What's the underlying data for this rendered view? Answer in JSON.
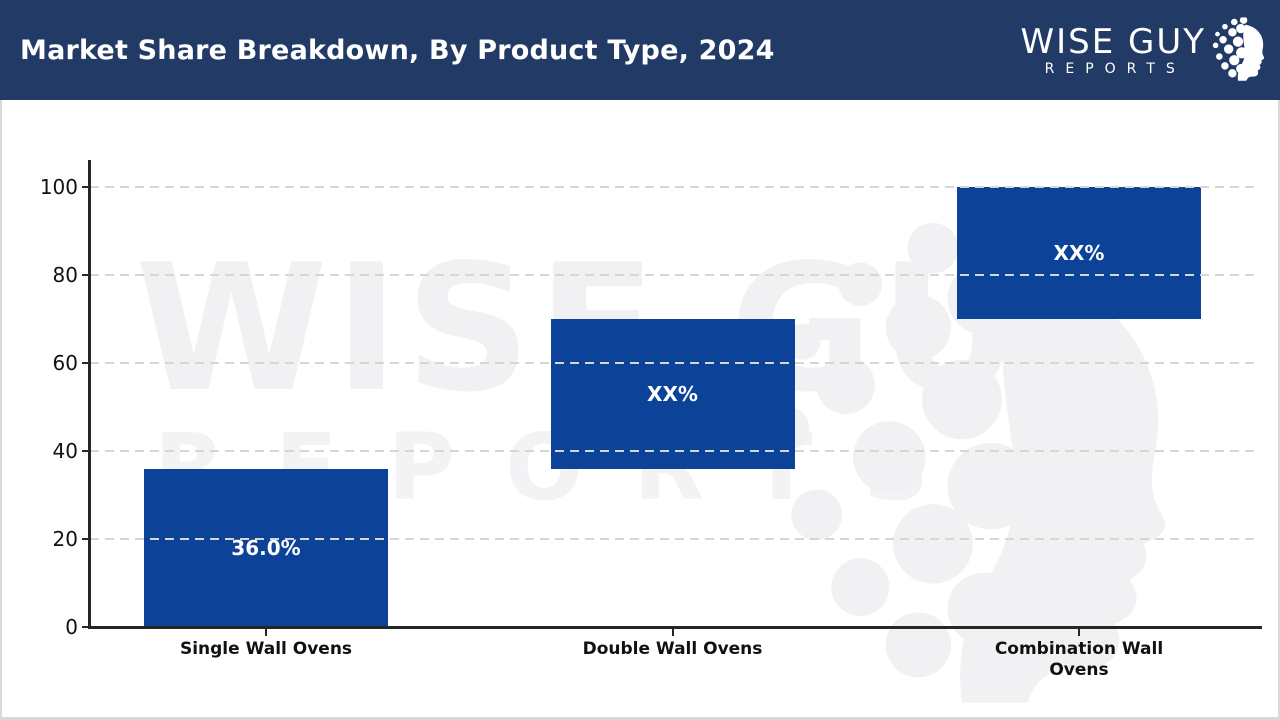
{
  "header": {
    "title": "Market Share Breakdown, By Product Type, 2024",
    "logo": {
      "name": "WISE GUY REPORTS",
      "line1": "WISE GUY",
      "line2": "REPORTS"
    }
  },
  "watermark": {
    "line1": "WISE GUY",
    "line2": "REPORTS"
  },
  "chart_data": {
    "type": "bar",
    "subtype": "floating-segment-bars",
    "title": "Market Share Breakdown, By Product Type, 2024",
    "categories": [
      "Single Wall Ovens",
      "Double Wall Ovens",
      "Combination Wall Ovens"
    ],
    "bars": [
      {
        "category": "Single Wall Ovens",
        "start": 0,
        "end": 36,
        "label": "36.0%"
      },
      {
        "category": "Double Wall Ovens",
        "start": 36,
        "end": 70,
        "label": "XX%"
      },
      {
        "category": "Combination Wall Ovens",
        "start": 70,
        "end": 100,
        "label": "XX%"
      }
    ],
    "ylim": [
      0,
      100
    ],
    "yticks": [
      0,
      20,
      40,
      60,
      80,
      100
    ],
    "xlabel": "",
    "ylabel": "",
    "grid": "horizontal-dashed",
    "legend": "none",
    "bar_color": "#0c4398",
    "label_color": "#ffffff"
  },
  "colors": {
    "header_bg": "#213a66",
    "bar": "#0c4398",
    "grid": "#d6d6d6",
    "axis": "#262626",
    "watermark": "#f1f1f4",
    "page_bg": "#ffffff"
  }
}
